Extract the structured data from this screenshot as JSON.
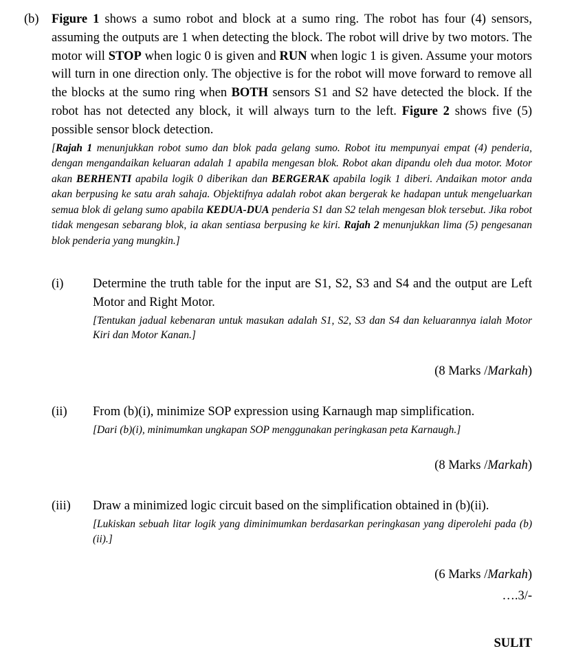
{
  "label_b": "(b)",
  "intro_en": {
    "fig1": "Figure 1",
    "seg1": " shows a sumo robot and block at a sumo ring. The robot has four (4) sensors, assuming the outputs are 1 when detecting the block. The robot will drive by two motors. The motor will ",
    "stop": "STOP",
    "seg2": " when logic 0 is given and ",
    "run": "RUN",
    "seg3": " when logic 1 is given. Assume your motors will turn in one direction only. The objective is for the robot will move forward to remove all the blocks at the sumo ring when ",
    "both": "BOTH",
    "seg4": " sensors S1 and S2 have detected the block. If the robot has not detected any block, it will always turn to the left. ",
    "fig2": "Figure 2",
    "seg5": " shows five (5) possible sensor block detection."
  },
  "intro_ms": {
    "open": "[",
    "rajah1": "Rajah 1",
    "seg1": " menunjukkan robot sumo dan blok pada gelang sumo. Robot itu mempunyai empat (4) penderia, dengan mengandaikan keluaran adalah 1 apabila mengesan blok. Robot akan dipandu oleh dua motor. Motor akan ",
    "berhenti": "BERHENTI",
    "seg2": " apabila logik 0 diberikan dan ",
    "bergerak": "BERGERAK",
    "seg3": " apabila logik 1 diberi. Andaikan motor anda akan berpusing ke satu arah sahaja. Objektifnya adalah robot akan bergerak ke hadapan untuk mengeluarkan semua blok di gelang sumo apabila ",
    "kedua": "KEDUA-DUA",
    "seg4": " penderia S1 dan S2 telah mengesan blok tersebut. Jika robot tidak mengesan sebarang blok, ia akan sentiasa berpusing ke kiri. ",
    "rajah2": "Rajah 2",
    "seg5": " menunjukkan lima (5) pengesanan blok penderia yang mungkin.",
    "close": "]"
  },
  "parts": {
    "i": {
      "label": "(i)",
      "en": "Determine the truth table for the input are S1, S2, S3 and S4 and the output are Left Motor and Right Motor.",
      "ms": "[Tentukan jadual kebenaran untuk masukan adalah S1, S2, S3 dan S4 dan keluarannya ialah Motor Kiri dan Motor Kanan.]",
      "marks_en": "(8 Marks /",
      "marks_ms": "Markah",
      "marks_close": ")"
    },
    "ii": {
      "label": "(ii)",
      "en": "From (b)(i), minimize SOP expression using Karnaugh map simplification.",
      "ms": "[Dari (b)(i), minimumkan ungkapan SOP menggunakan peringkasan peta Karnaugh.]",
      "marks_en": "(8 Marks /",
      "marks_ms": "Markah",
      "marks_close": ")"
    },
    "iii": {
      "label": "(iii)",
      "en": "Draw a minimized logic circuit based on the simplification obtained in (b)(ii).",
      "ms": "[Lukiskan sebuah litar logik yang diminimumkan berdasarkan peringkasan yang diperolehi pada (b)(ii).]",
      "marks_en": "(6 Marks /",
      "marks_ms": "Markah",
      "marks_close": ")"
    }
  },
  "page_continuation": "….3/-",
  "footer": "SULIT"
}
